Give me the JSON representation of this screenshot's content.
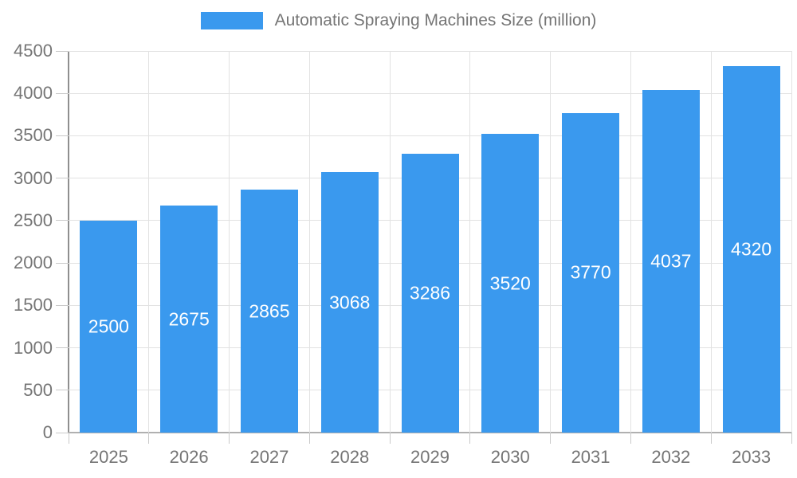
{
  "chart_data": {
    "type": "bar",
    "title": "Automatic Spraying Machines Size (million)",
    "legend": {
      "label": "Automatic Spraying Machines Size (million)",
      "position": "top"
    },
    "categories": [
      "2025",
      "2026",
      "2027",
      "2028",
      "2029",
      "2030",
      "2031",
      "2032",
      "2033"
    ],
    "series": [
      {
        "name": "Automatic Spraying Machines Size (million)",
        "values": [
          2500,
          2675,
          2865,
          3068,
          3286,
          3520,
          3770,
          4037,
          4320
        ]
      }
    ],
    "xlabel": "",
    "ylabel": "",
    "ylim": [
      0,
      4500
    ],
    "yticks": [
      0,
      500,
      1000,
      1500,
      2000,
      2500,
      3000,
      3500,
      4000,
      4500
    ],
    "grid": true,
    "value_label_position": "inside-center"
  },
  "colors": {
    "bar": "#3A99EE",
    "value_label": "#FFFFFF",
    "axis_text": "#757575",
    "legend_text": "#757575",
    "gridline": "#E2E2E2",
    "y_axis_line": "#8F8F8F",
    "x_axis_line": "#B0B0B0",
    "tick": "#C9C9C9",
    "background": "#FFFFFF"
  }
}
